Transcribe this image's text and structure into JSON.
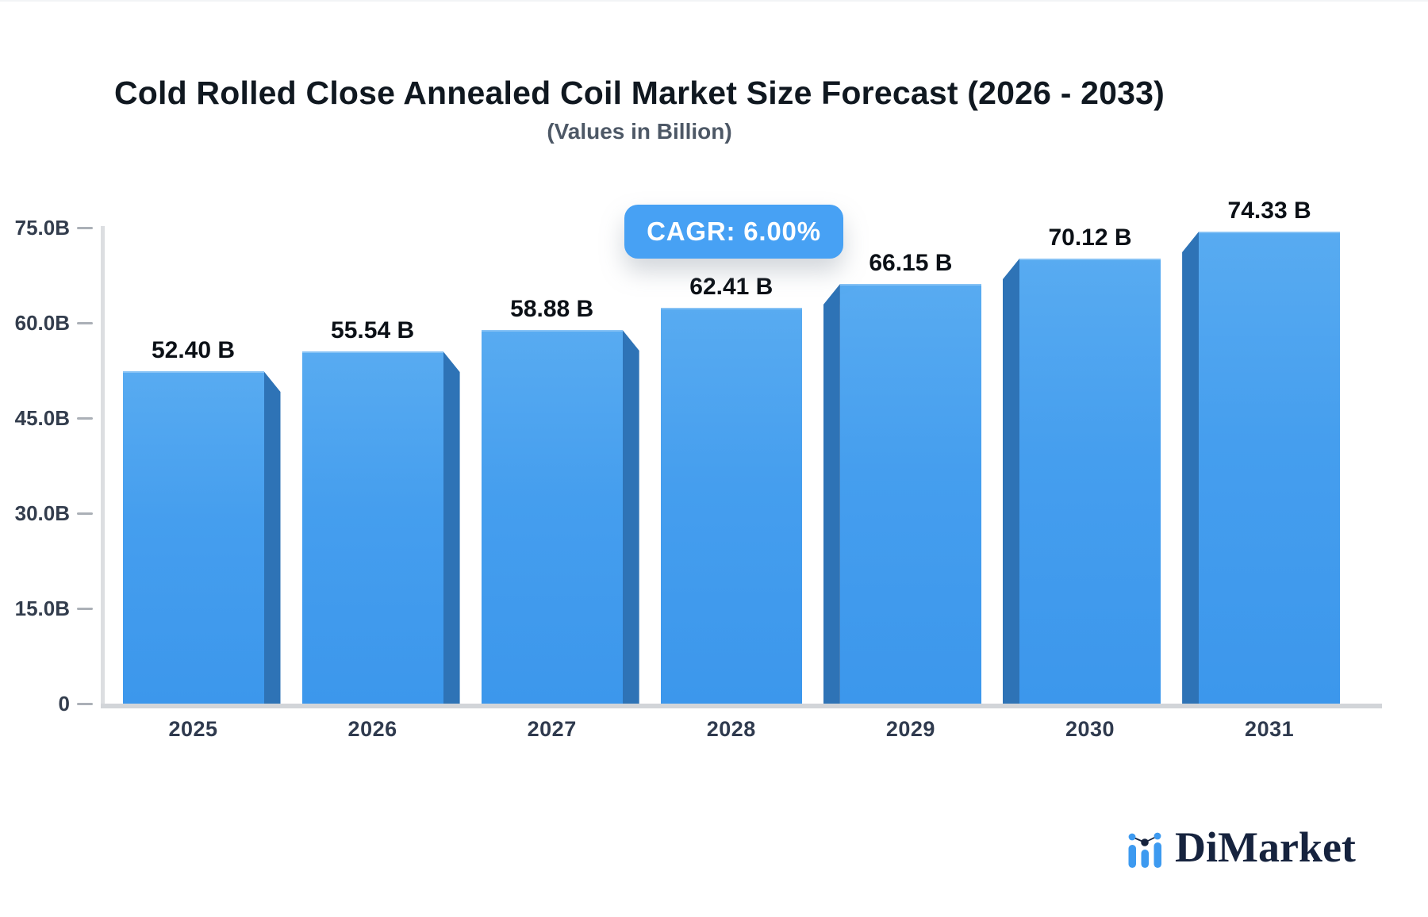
{
  "header": {
    "title": "Cold Rolled Close Annealed Coil Market Size Forecast (2026 - 2033)",
    "subtitle": "(Values in Billion)"
  },
  "badge": {
    "label": "CAGR: 6.00%",
    "bg_color": "#47a1f4"
  },
  "chart_data": {
    "type": "bar",
    "title": "Cold Rolled Close Annealed Coil Market Size Forecast (2026 - 2033)",
    "subtitle": "(Values in Billion)",
    "categories": [
      "2025",
      "2026",
      "2027",
      "2028",
      "2029",
      "2030",
      "2031"
    ],
    "values": [
      52.4,
      55.54,
      58.88,
      62.41,
      66.15,
      70.12,
      74.33
    ],
    "value_labels": [
      "52.40 B",
      "55.54 B",
      "58.88 B",
      "62.41 B",
      "66.15 B",
      "70.12 B",
      "74.33 B"
    ],
    "unit": "Billion",
    "ylim": [
      0,
      75
    ],
    "yticks": [
      {
        "value": 0,
        "label": "0"
      },
      {
        "value": 15,
        "label": "15.0B"
      },
      {
        "value": 30,
        "label": "30.0B"
      },
      {
        "value": 45,
        "label": "45.0B"
      },
      {
        "value": 60,
        "label": "60.0B"
      },
      {
        "value": 75,
        "label": "75.0B"
      }
    ],
    "grid": false,
    "legend": "none",
    "bar_face_color": "#459eee",
    "bar_side_color": "#2e73b6",
    "cagr": "6.00%"
  },
  "logo": {
    "text": "DiMarket",
    "icon": "bar-chart-logo-icon",
    "icon_blue": "#3d9af0",
    "navy": "#16233e"
  }
}
